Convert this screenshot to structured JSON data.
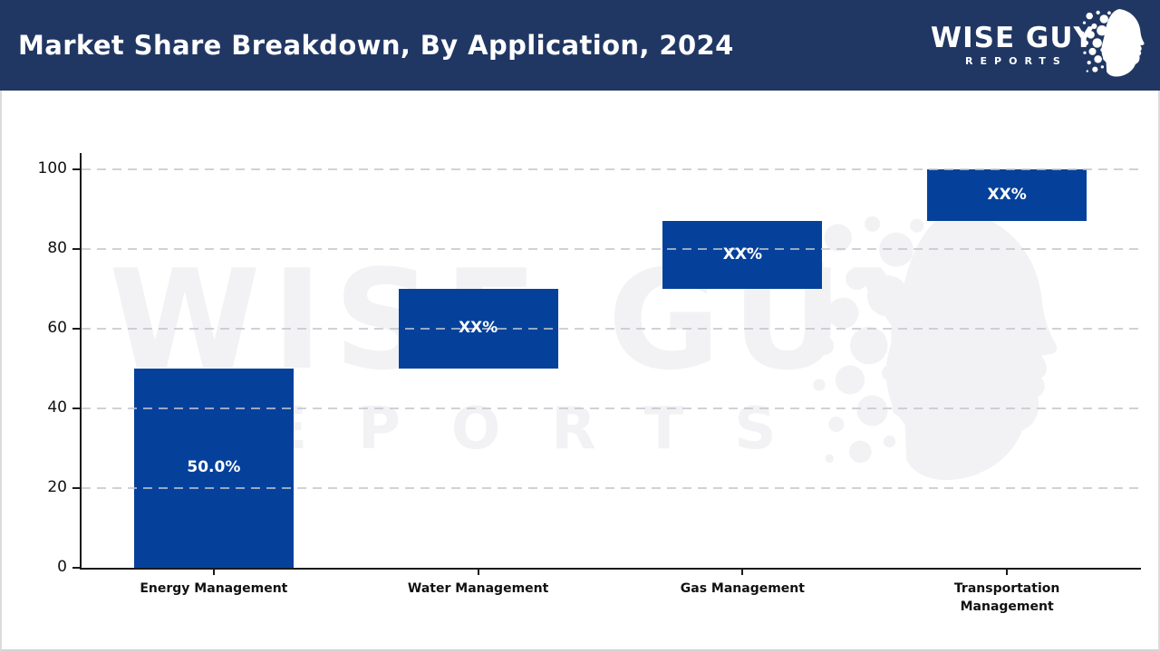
{
  "header": {
    "title": "Market Share Breakdown, By Application, 2024",
    "logo": {
      "name": "WISE GUY",
      "sub": "REPORTS"
    }
  },
  "watermark": {
    "line1": "WISE GUY",
    "line2": "REPORTS"
  },
  "chart_data": {
    "type": "bar",
    "subtype": "waterfall",
    "title": "Market Share Breakdown, By Application, 2024",
    "categories": [
      "Energy Management",
      "Water Management",
      "Gas Management",
      "Transportation Management"
    ],
    "segments": [
      {
        "category": "Energy Management",
        "start": 0,
        "end": 50,
        "label": "50.0%"
      },
      {
        "category": "Water Management",
        "start": 50,
        "end": 70,
        "label": "XX%"
      },
      {
        "category": "Gas Management",
        "start": 70,
        "end": 87,
        "label": "XX%"
      },
      {
        "category": "Transportation Management",
        "start": 87,
        "end": 100,
        "label": "XX%"
      }
    ],
    "yticks": [
      0,
      20,
      40,
      60,
      80,
      100
    ],
    "ylim": [
      0,
      104
    ],
    "xlabel": "",
    "ylabel": "",
    "grid": "horizontal-dashed",
    "legend": "none",
    "bar_color": "#05419b",
    "value_label_color": "#ffffff"
  },
  "colors": {
    "header_bg": "#213763",
    "bar": "#05419b",
    "axis": "#1a1a1a",
    "gridline": "#d8d8d8",
    "watermark": "#f2f2f4",
    "content_border": "#dcdcdc"
  }
}
